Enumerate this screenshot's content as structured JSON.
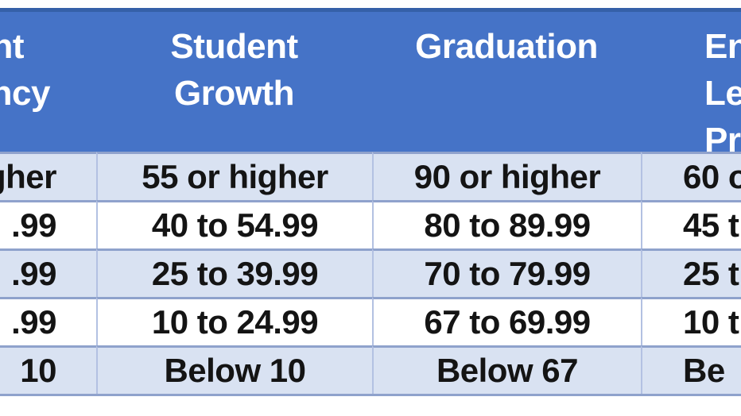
{
  "table": {
    "header": {
      "student_proficiency_partial": {
        "line1": "nt",
        "line2": "ncy"
      },
      "student_growth": {
        "line1": "Student",
        "line2": "Growth"
      },
      "graduation": "Graduation",
      "english_learner_partial": {
        "line1": "En",
        "line2": "Le",
        "line3": "Pr"
      }
    },
    "rows": [
      {
        "c1": "gher",
        "c2": "55 or higher",
        "c3": "90 or higher",
        "c4": "60 o"
      },
      {
        "c1": ".99",
        "c2": "40 to 54.99",
        "c3": "80 to 89.99",
        "c4": "45 t"
      },
      {
        "c1": ".99",
        "c2": "25 to 39.99",
        "c3": "70 to 79.99",
        "c4": "25 t"
      },
      {
        "c1": ".99",
        "c2": "10 to 24.99",
        "c3": "67 to 69.99",
        "c4": "10 t"
      },
      {
        "c1": "10",
        "c2": "Below 10",
        "c3": "Below 67",
        "c4": "Be"
      }
    ],
    "colors": {
      "header_bg": "#4573C7",
      "header_top_border": "#3560A8",
      "row_alt_bg": "#D9E2F2",
      "row_bg": "#FFFFFF",
      "grid_line": "#8FA2CC",
      "vertical_grid_line": "#B3C1E2",
      "header_text": "#FFFFFF",
      "body_text": "#141414"
    }
  }
}
